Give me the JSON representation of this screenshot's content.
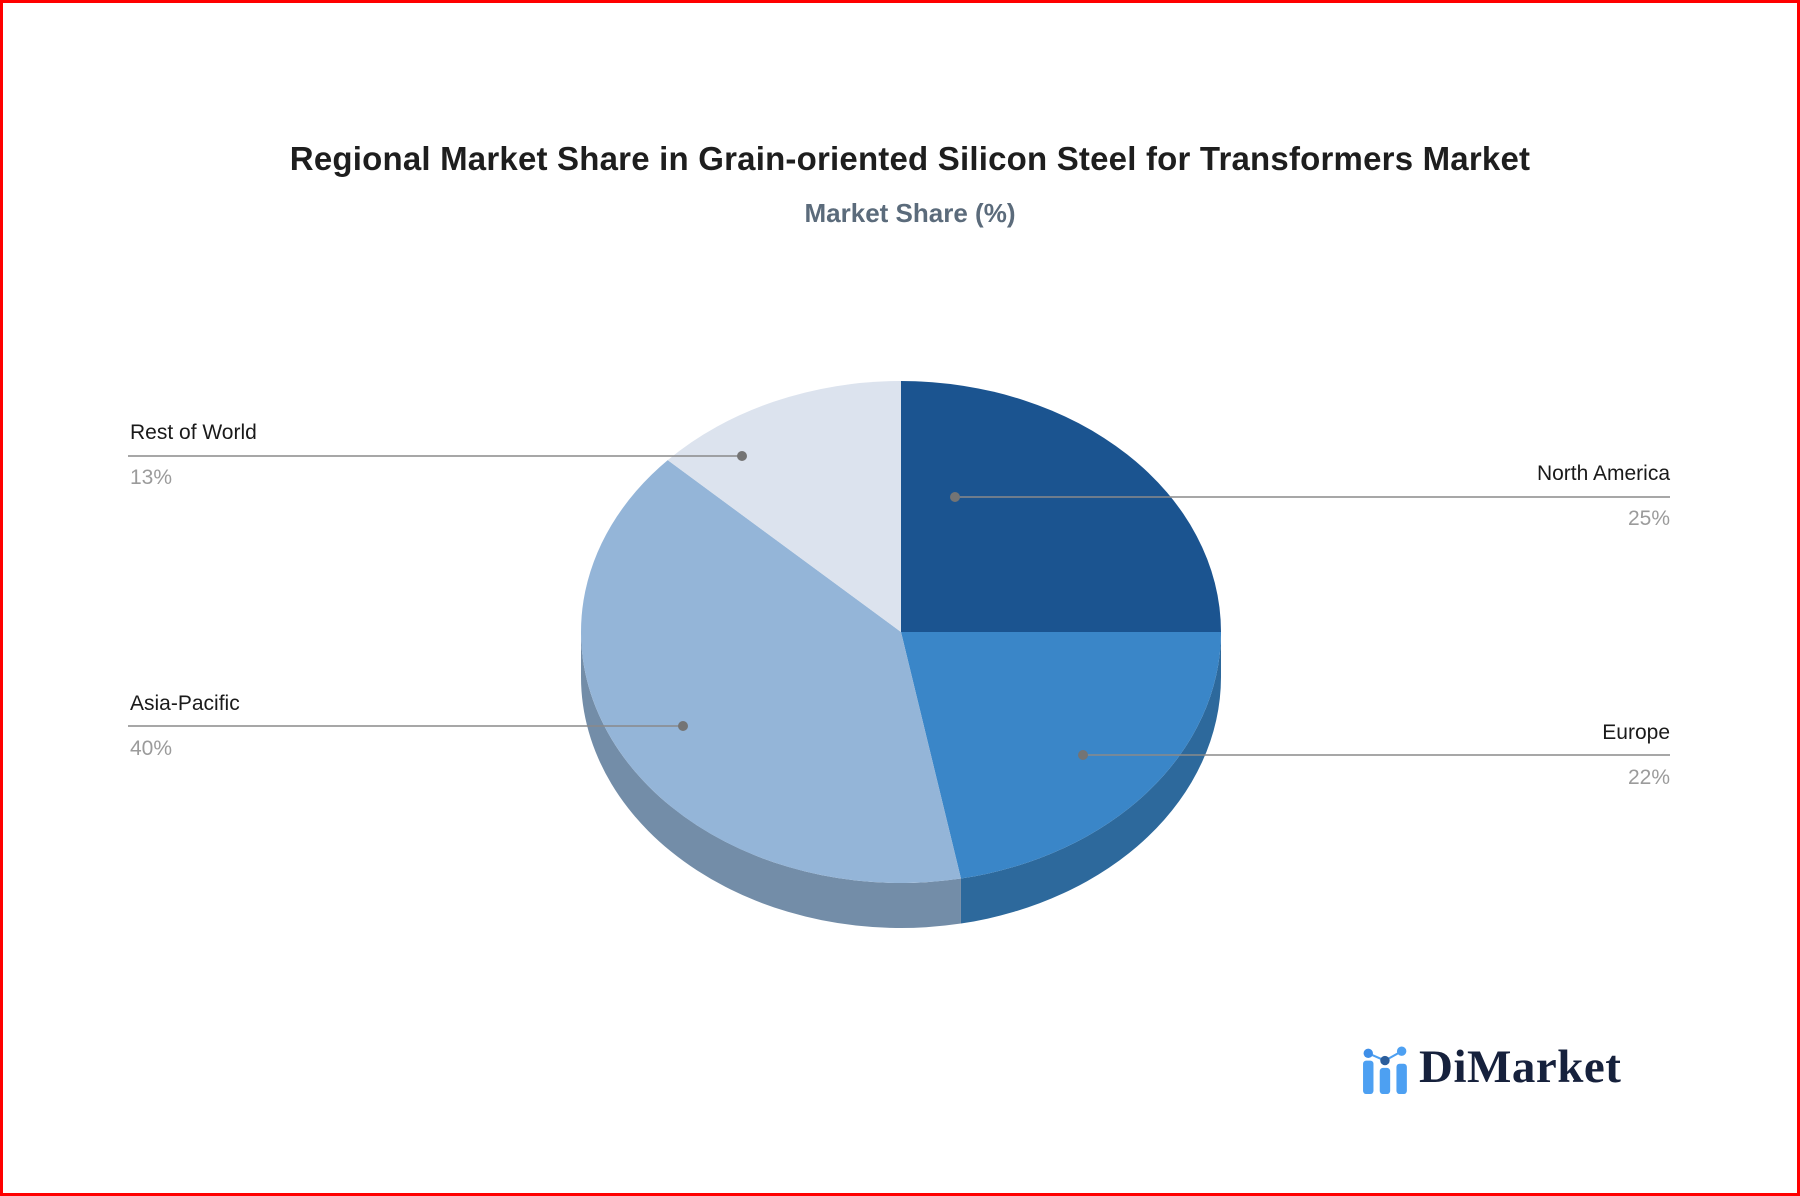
{
  "frame": {
    "border_color": "#ff0000"
  },
  "chart_data": {
    "type": "pie",
    "style": "3d",
    "title": "Regional Market Share in Grain-oriented Silicon Steel for Transformers Market",
    "subtitle": "Market Share (%)",
    "unit": "percent",
    "categories": [
      "North America",
      "Europe",
      "Asia-Pacific",
      "Rest of World"
    ],
    "values": [
      25,
      22,
      40,
      13
    ],
    "colors": [
      "#1B5490",
      "#3A86C8",
      "#94B5D8",
      "#DCE3EE"
    ],
    "start_angle_deg": 0,
    "direction": "clockwise",
    "legend": "none",
    "labels": [
      {
        "name": "North America",
        "value_label": "25%",
        "side": "right"
      },
      {
        "name": "Europe",
        "value_label": "22%",
        "side": "right"
      },
      {
        "name": "Asia-Pacific",
        "value_label": "40%",
        "side": "left"
      },
      {
        "name": "Rest of World",
        "value_label": "13%",
        "side": "left"
      }
    ],
    "title_color": "#1e1e1e",
    "subtitle_color": "#5b6b7b",
    "label_name_color": "#1a1a1a",
    "label_value_color": "#9b9b9b",
    "connector_color": "#8a8a8a",
    "connector_dot_color": "#747474"
  },
  "branding": {
    "logo_text": "DiMarket",
    "logo_icon": "bar-line-chart-icon",
    "logo_text_color": "#16213C",
    "logo_accent_color": "#4DA0F2",
    "logo_dot_colors": [
      "#3F8FE8",
      "#2B5E9C",
      "#4DA0F2"
    ]
  }
}
